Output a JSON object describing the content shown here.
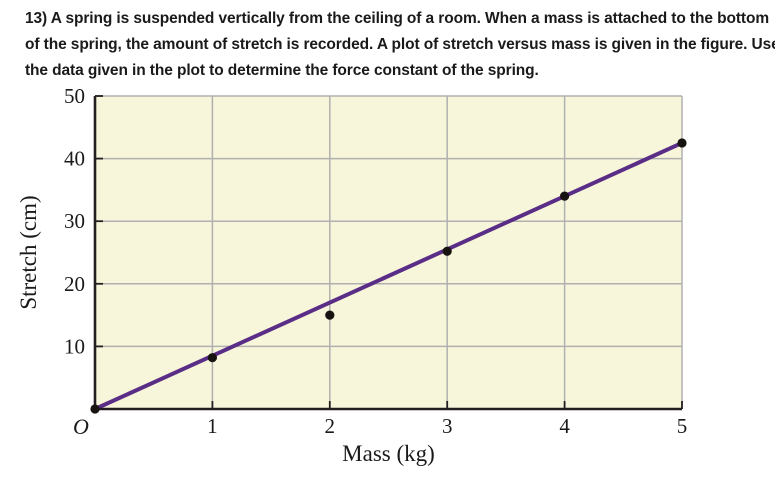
{
  "problem": {
    "lines": [
      "13) A spring is suspended vertically from the ceiling of a room. When a mass is attached to the bottom",
      "of the spring, the amount of stretch is recorded. A plot of stretch versus mass is given in the figure. Use",
      "the data given in the plot to determine the force constant of the spring."
    ]
  },
  "chart_data": {
    "type": "scatter",
    "title": "",
    "xlabel": "Mass (kg)",
    "ylabel": "Stretch (cm)",
    "origin_label": "O",
    "xlim": [
      0,
      5
    ],
    "ylim": [
      0,
      50
    ],
    "x_ticks": [
      1,
      2,
      3,
      4,
      5
    ],
    "y_ticks": [
      10,
      20,
      30,
      40,
      50
    ],
    "grid": true,
    "legend": "none",
    "points": [
      [
        0,
        0
      ],
      [
        1,
        8.2
      ],
      [
        2,
        15
      ],
      [
        3,
        25.2
      ],
      [
        4,
        34
      ],
      [
        5,
        42.5
      ]
    ],
    "fit_line": {
      "from": [
        0,
        0
      ],
      "to": [
        5,
        42.5
      ],
      "slope_cm_per_kg": 8.5
    },
    "colors": {
      "line": "#5a2d87",
      "point": "#171310",
      "plot_bg": "#f8f6da",
      "grid": "#b0b0b0",
      "axis": "#231f20",
      "text": "#1a1a1a"
    }
  }
}
